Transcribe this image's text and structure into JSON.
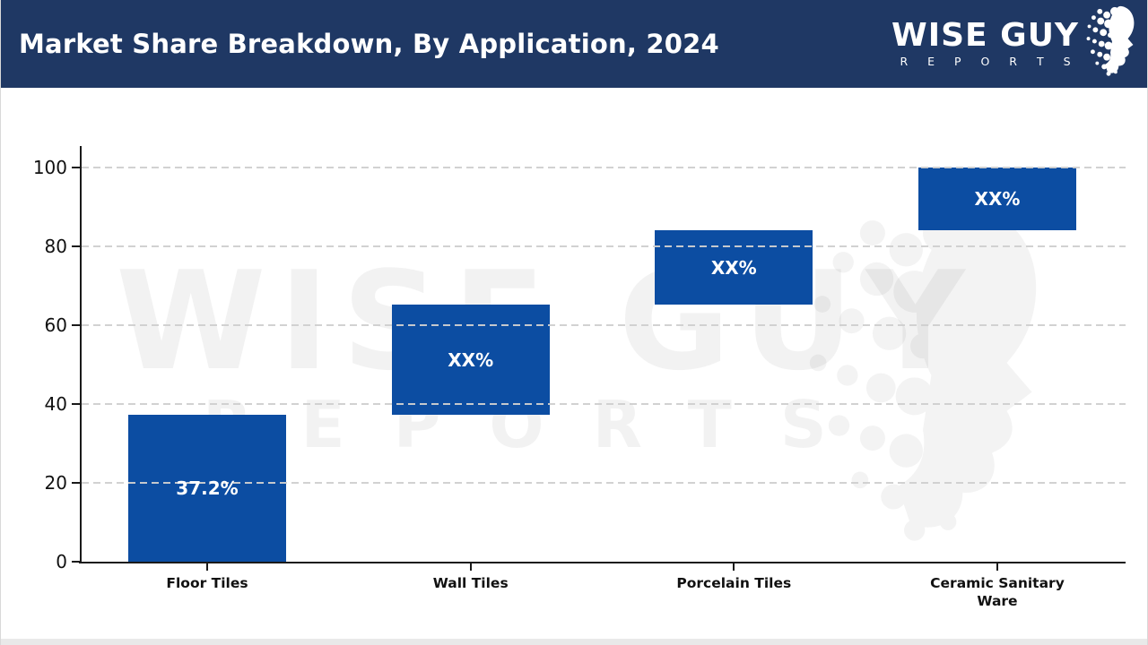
{
  "header": {
    "title": "Market Share Breakdown, By Application, 2024",
    "logo": {
      "wordmark": "WISE GUY",
      "subtext": "R E P O R T S"
    }
  },
  "watermark": {
    "wordmark": "WISE GUY",
    "subtext": "REPORTS"
  },
  "chart_data": {
    "type": "bar",
    "variant": "waterfall",
    "title": "Market Share Breakdown, By Application, 2024",
    "categories": [
      "Floor Tiles",
      "Wall Tiles",
      "Porcelain Tiles",
      "Ceramic Sanitary Ware"
    ],
    "segments": [
      {
        "category": "Floor Tiles",
        "start": 0,
        "end": 37.2,
        "label": "37.2%"
      },
      {
        "category": "Wall Tiles",
        "start": 37.2,
        "end": 65.2,
        "label": "XX%"
      },
      {
        "category": "Porcelain Tiles",
        "start": 65.2,
        "end": 84,
        "label": "XX%"
      },
      {
        "category": "Ceramic Sanitary Ware",
        "start": 84,
        "end": 100,
        "label": "XX%"
      }
    ],
    "xlabel": "",
    "ylabel": "",
    "ylim": [
      0,
      100
    ],
    "yticks": [
      0,
      20,
      40,
      60,
      80,
      100
    ],
    "grid": "horizontal-dashed",
    "legend": "none",
    "colors": {
      "bar": "#0C4DA2",
      "bar_label": "#FFFFFF",
      "header_bg": "#1F3864",
      "axis": "#1A1A1A",
      "gridline": "#CFCFCF"
    }
  }
}
